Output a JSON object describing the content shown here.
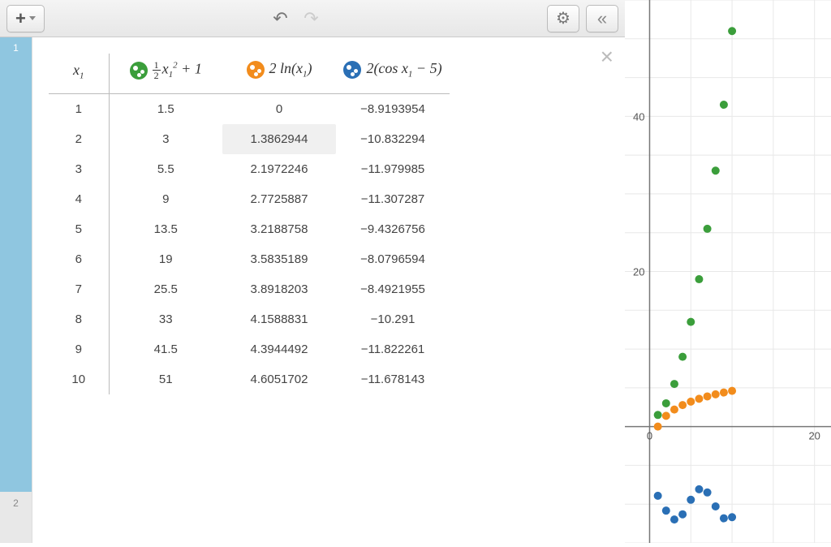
{
  "toolbar": {
    "add": "+",
    "undo": "↶",
    "redo": "↷",
    "gear": "⚙",
    "collapse": "«"
  },
  "gutter": {
    "active_index": "1",
    "second_index": "2"
  },
  "table": {
    "headers": {
      "x1": "x",
      "x1_sub": "1",
      "col1_expr_pre": "½ x₁² + 1",
      "col2_expr": "2 ln(x₁)",
      "col3_expr": "2(cos x₁ − 5)"
    },
    "swatch_colors": {
      "c1": "#3b9e3b",
      "c2": "#f28c1c",
      "c3": "#2a6fb5"
    },
    "rows": [
      {
        "x": "1",
        "c1": "1.5",
        "c2": "0",
        "c3": "−8.9193954"
      },
      {
        "x": "2",
        "c1": "3",
        "c2": "1.3862944",
        "c3": "−10.832294"
      },
      {
        "x": "3",
        "c1": "5.5",
        "c2": "2.1972246",
        "c3": "−11.979985"
      },
      {
        "x": "4",
        "c1": "9",
        "c2": "2.7725887",
        "c3": "−11.307287"
      },
      {
        "x": "5",
        "c1": "13.5",
        "c2": "3.2188758",
        "c3": "−9.4326756"
      },
      {
        "x": "6",
        "c1": "19",
        "c2": "3.5835189",
        "c3": "−8.0796594"
      },
      {
        "x": "7",
        "c1": "25.5",
        "c2": "3.8918203",
        "c3": "−8.4921955"
      },
      {
        "x": "8",
        "c1": "33",
        "c2": "4.1588831",
        "c3": "−10.291"
      },
      {
        "x": "9",
        "c1": "41.5",
        "c2": "4.3944492",
        "c3": "−11.822261"
      },
      {
        "x": "10",
        "c1": "51",
        "c2": "4.6051702",
        "c3": "−11.678143"
      }
    ]
  },
  "graph": {
    "type": "scatter",
    "aspect": "254x669",
    "x_axis": {
      "min": -3,
      "max": 22,
      "ticks": [
        0,
        20
      ],
      "tick_labels": [
        "0",
        "20"
      ]
    },
    "y_axis": {
      "min": -15,
      "max": 55,
      "ticks": [
        20,
        40
      ],
      "tick_labels": [
        "20",
        "40"
      ]
    },
    "grid_step": 5,
    "background": "#ffffff",
    "grid_color": "#e8e8e8",
    "axis_color": "#777777",
    "tick_font_size": 13,
    "marker_radius": 5,
    "series": [
      {
        "name": "green",
        "color": "#3b9e3b",
        "points": [
          [
            1,
            1.5
          ],
          [
            2,
            3
          ],
          [
            3,
            5.5
          ],
          [
            4,
            9
          ],
          [
            5,
            13.5
          ],
          [
            6,
            19
          ],
          [
            7,
            25.5
          ],
          [
            8,
            33
          ],
          [
            9,
            41.5
          ],
          [
            10,
            51
          ]
        ]
      },
      {
        "name": "orange",
        "color": "#f28c1c",
        "points": [
          [
            1,
            0
          ],
          [
            2,
            1.386
          ],
          [
            3,
            2.197
          ],
          [
            4,
            2.773
          ],
          [
            5,
            3.219
          ],
          [
            6,
            3.584
          ],
          [
            7,
            3.892
          ],
          [
            8,
            4.159
          ],
          [
            9,
            4.394
          ],
          [
            10,
            4.605
          ]
        ]
      },
      {
        "name": "blue",
        "color": "#2a6fb5",
        "points": [
          [
            1,
            -8.919
          ],
          [
            2,
            -10.832
          ],
          [
            3,
            -11.98
          ],
          [
            4,
            -11.307
          ],
          [
            5,
            -9.433
          ],
          [
            6,
            -8.08
          ],
          [
            7,
            -8.492
          ],
          [
            8,
            -10.291
          ],
          [
            9,
            -11.822
          ],
          [
            10,
            -11.678
          ]
        ]
      }
    ]
  }
}
